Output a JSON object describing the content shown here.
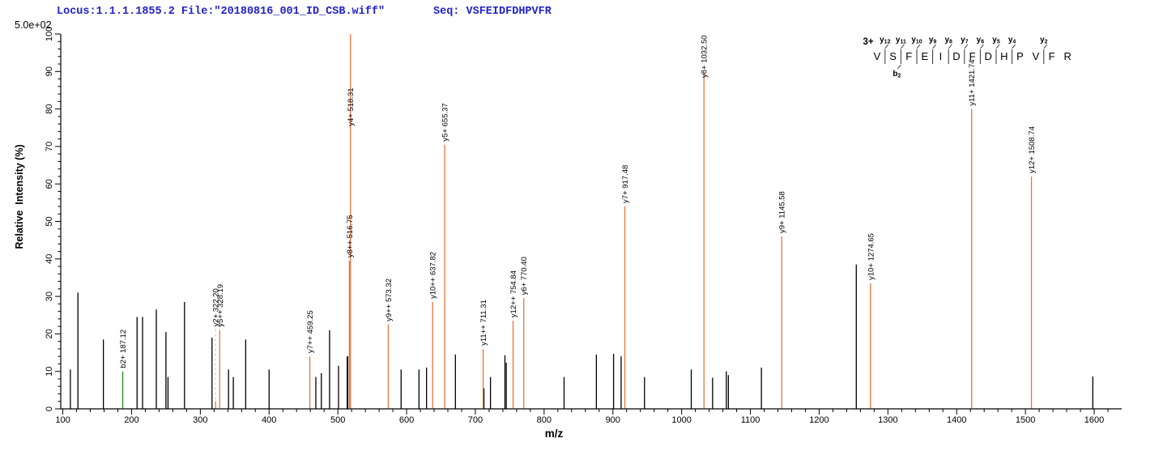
{
  "header": {
    "locus_file": "Locus:1.1.1.1855.2 File:\"20180816_001_ID_CSB.wiff\"",
    "seq": "Seq: VSFEIDFDHPVFR"
  },
  "colors": {
    "header_blue": "#2222CC",
    "y_ion_orange": "#E8743C",
    "b_ion_green": "#228B22",
    "peak_black": "#000000",
    "leader_gray": "#C0C0C0",
    "axis_black": "#000000"
  },
  "chart_data": {
    "type": "bar",
    "subtype": "ms2-fragmentation-spectrum",
    "title": "",
    "xlabel": "m/z",
    "ylabel": "Relative  Intensity (%)",
    "y_scale_label": "5.0e+02",
    "xlim": [
      97,
      1640
    ],
    "ylim": [
      0,
      100
    ],
    "x_major_tick_start": 100,
    "x_major_tick_end": 1600,
    "x_major_tick_step": 100,
    "x_minor_tick_step": 20,
    "y_major_tick_step": 10,
    "y_minor_tick_step": 2,
    "grid": false,
    "legend": false,
    "labeled_peaks": [
      {
        "label": "b2+ 187.12",
        "mz": 187.12,
        "intensity": 10,
        "series": "b"
      },
      {
        "label": "y2+ 322.20",
        "mz": 322.2,
        "intensity": 2,
        "series": "y",
        "leader": "dashed",
        "label_at": 21.5
      },
      {
        "label": "y5++ 328.19",
        "mz": 328.19,
        "intensity": 21,
        "series": "y"
      },
      {
        "label": "y7++ 459.25",
        "mz": 459.25,
        "intensity": 14,
        "series": "y"
      },
      {
        "label": "y8++ 516.75",
        "mz": 516.75,
        "intensity": 39.5,
        "series": "y"
      },
      {
        "label": "y4+ 518.31",
        "mz": 518.31,
        "intensity": 100,
        "series": "y",
        "label_at": 75
      },
      {
        "label": "y9++ 573.32",
        "mz": 573.32,
        "intensity": 22.5,
        "series": "y"
      },
      {
        "label": "y10++ 637.82",
        "mz": 637.82,
        "intensity": 28.5,
        "series": "y"
      },
      {
        "label": "y5+ 655.37",
        "mz": 655.37,
        "intensity": 70.5,
        "series": "y"
      },
      {
        "label": "y11++ 711.31",
        "mz": 711.31,
        "intensity": 16,
        "series": "y"
      },
      {
        "label": "y12++ 754.84",
        "mz": 754.84,
        "intensity": 23.5,
        "series": "y"
      },
      {
        "label": "y6+ 770.40",
        "mz": 770.4,
        "intensity": 29.5,
        "series": "y"
      },
      {
        "label": "y7+ 917.48",
        "mz": 917.48,
        "intensity": 54,
        "series": "y"
      },
      {
        "label": "y8+ 1032.50",
        "mz": 1032.5,
        "intensity": 89.5,
        "series": "y"
      },
      {
        "label": "y9+ 1145.58",
        "mz": 1145.58,
        "intensity": 46,
        "series": "y"
      },
      {
        "label": "y10+ 1274.65",
        "mz": 1274.65,
        "intensity": 33.5,
        "series": "y"
      },
      {
        "label": "y11+ 1421.74",
        "mz": 1421.74,
        "intensity": 80,
        "series": "y"
      },
      {
        "label": "y12+ 1508.74",
        "mz": 1508.74,
        "intensity": 62,
        "series": "y"
      }
    ],
    "unlabeled_peaks": [
      [
        111,
        10.5
      ],
      [
        122,
        31
      ],
      [
        159,
        18.5
      ],
      [
        208,
        24.5
      ],
      [
        216,
        24.5
      ],
      [
        236,
        26.5
      ],
      [
        250,
        20.5
      ],
      [
        253,
        8.5
      ],
      [
        277,
        28.5
      ],
      [
        317,
        19
      ],
      [
        341,
        10.5
      ],
      [
        348,
        8.5
      ],
      [
        366,
        18.5
      ],
      [
        400,
        10.5
      ],
      [
        468,
        8.5
      ],
      [
        476,
        9.5
      ],
      [
        488,
        21
      ],
      [
        501,
        11.5
      ],
      [
        514,
        14
      ],
      [
        592,
        10.5
      ],
      [
        618,
        10.5
      ],
      [
        629,
        11
      ],
      [
        671,
        14.5
      ],
      [
        712.5,
        5.5
      ],
      [
        722,
        8.5
      ],
      [
        743,
        14.3
      ],
      [
        745,
        12.3
      ],
      [
        829,
        8.5
      ],
      [
        876,
        14.5
      ],
      [
        901,
        14.7
      ],
      [
        912,
        14
      ],
      [
        946,
        8.5
      ],
      [
        1014,
        10.5
      ],
      [
        1045,
        8.3
      ],
      [
        1065,
        10
      ],
      [
        1068,
        9
      ],
      [
        1116,
        11
      ],
      [
        1254,
        38.5
      ],
      [
        1598,
        8.6
      ]
    ]
  },
  "sequence_ladder": {
    "charge": "3+",
    "residues": [
      "V",
      "S",
      "F",
      "E",
      "I",
      "D",
      "F",
      "D",
      "H",
      "P",
      "V",
      "F",
      "R"
    ],
    "y_ions": [
      {
        "gap": 1,
        "label": "y",
        "sub": "12"
      },
      {
        "gap": 2,
        "label": "y",
        "sub": "11"
      },
      {
        "gap": 3,
        "label": "y",
        "sub": "10"
      },
      {
        "gap": 4,
        "label": "y",
        "sub": "9"
      },
      {
        "gap": 5,
        "label": "y",
        "sub": "8"
      },
      {
        "gap": 6,
        "label": "y",
        "sub": "7"
      },
      {
        "gap": 7,
        "label": "y",
        "sub": "6"
      },
      {
        "gap": 8,
        "label": "y",
        "sub": "5"
      },
      {
        "gap": 9,
        "label": "y",
        "sub": "4"
      },
      {
        "gap": 11,
        "label": "y",
        "sub": "2"
      }
    ],
    "b_ions": [
      {
        "gap": 2,
        "label": "b",
        "sub": "2"
      }
    ]
  }
}
